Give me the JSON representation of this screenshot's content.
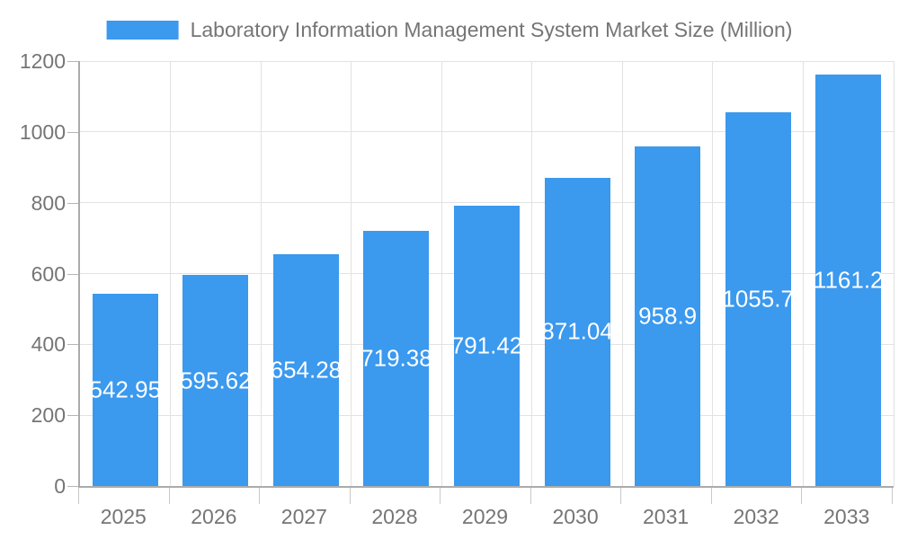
{
  "chart_data": {
    "type": "bar",
    "title": "Laboratory Information Management System Market Size (Million)",
    "categories": [
      "2025",
      "2026",
      "2027",
      "2028",
      "2029",
      "2030",
      "2031",
      "2032",
      "2033"
    ],
    "values": [
      542.95,
      595.62,
      654.28,
      719.38,
      791.42,
      871.04,
      958.9,
      1055.7,
      1161.2
    ],
    "value_labels": [
      "542.95",
      "595.62",
      "654.28",
      "719.38",
      "791.42",
      "871.04",
      "958.9",
      "1055.7",
      "1161.2"
    ],
    "xlabel": "",
    "ylabel": "",
    "ylim": [
      0,
      1200
    ],
    "yticks": [
      0,
      200,
      400,
      600,
      800,
      1000,
      1200
    ],
    "grid": "horizontal-and-vertical",
    "legend_position": "top-center",
    "value_label_position": "inside-middle",
    "colors": {
      "bar": "#3B99EE",
      "grid_line": "#E2E2E2",
      "axis_line": "#ABABAB",
      "tick_label": "#757575",
      "value_label": "#FFFFFF",
      "background": "#FFFFFF"
    }
  }
}
